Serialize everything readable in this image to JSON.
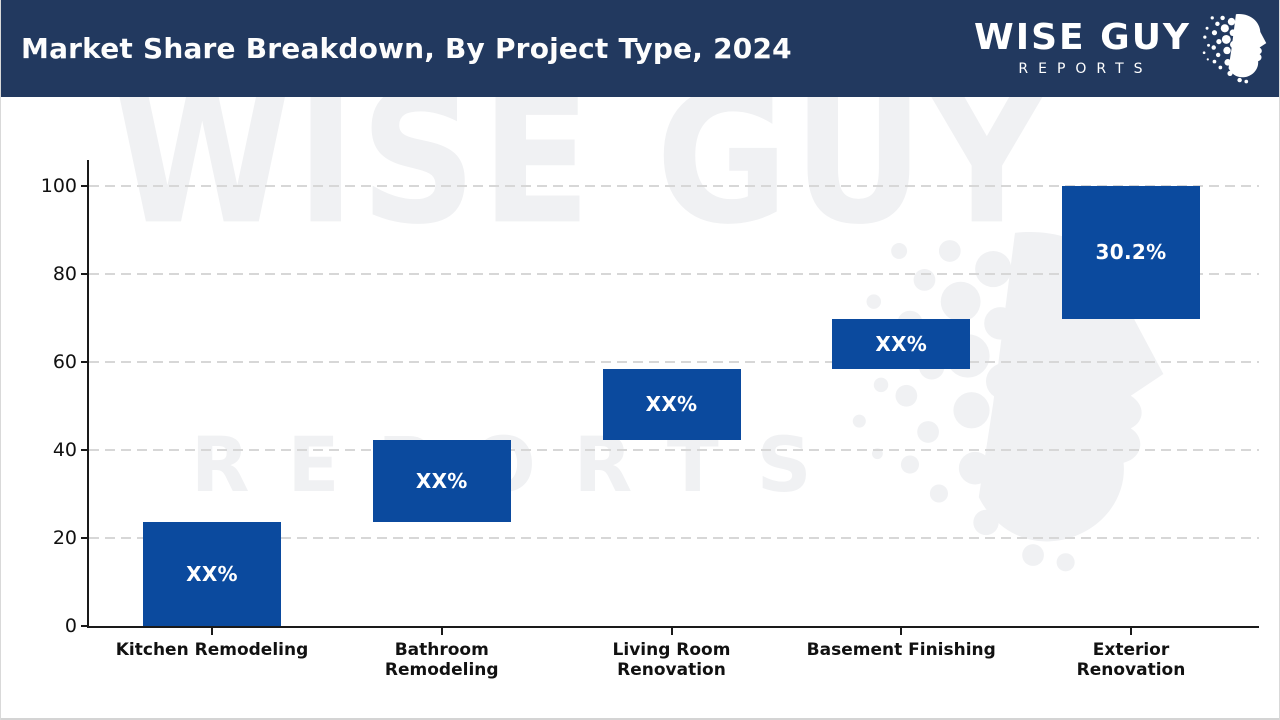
{
  "header": {
    "title": "Market Share Breakdown, By Project Type, 2024",
    "brand": {
      "line1": "WISE GUY",
      "line2": "REPORTS"
    }
  },
  "watermark": {
    "line1": "WISE GUY",
    "line2": "REPORTS"
  },
  "colors": {
    "header_bg": "#22395f",
    "bar": "#0b4a9e",
    "watermark": "#f0f1f3",
    "gridline": "#d7d7d7",
    "axis": "#1a1a1a",
    "text": "#111111",
    "bar_label": "#ffffff"
  },
  "chart_data": {
    "type": "bar",
    "subtype": "waterfall",
    "title": "Market Share Breakdown, By Project Type, 2024",
    "xlabel": "",
    "ylabel": "",
    "ylim": [
      0,
      100
    ],
    "yticks": [
      0,
      20,
      40,
      60,
      80,
      100
    ],
    "grid": "horizontal-dashed",
    "legend": "none",
    "categories": [
      "Kitchen Remodeling",
      "Bathroom Remodeling",
      "Living Room Renovation",
      "Basement Finishing",
      "Exterior Renovation"
    ],
    "category_lines": [
      [
        "Kitchen Remodeling"
      ],
      [
        "Bathroom",
        "Remodeling"
      ],
      [
        "Living Room",
        "Renovation"
      ],
      [
        "Basement Finishing"
      ],
      [
        "Exterior",
        "Renovation"
      ]
    ],
    "segments": [
      {
        "category": "Kitchen Remodeling",
        "start": 0,
        "end": 23.6,
        "label": "XX%"
      },
      {
        "category": "Bathroom Remodeling",
        "start": 23.6,
        "end": 42.3,
        "label": "XX%"
      },
      {
        "category": "Living Room Renovation",
        "start": 42.3,
        "end": 58.4,
        "label": "XX%"
      },
      {
        "category": "Basement Finishing",
        "start": 58.4,
        "end": 69.8,
        "label": "XX%"
      },
      {
        "category": "Exterior Renovation",
        "start": 69.8,
        "end": 100,
        "label": "30.2%",
        "value": 30.2
      }
    ]
  }
}
